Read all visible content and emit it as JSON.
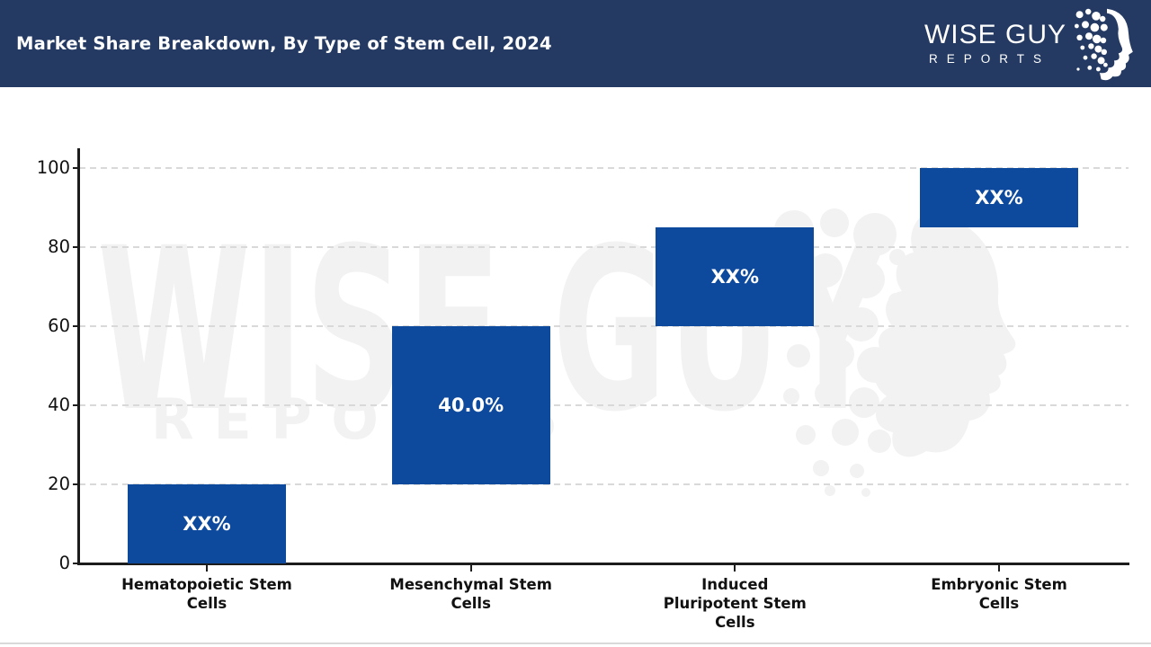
{
  "header": {
    "title": "Market Share Breakdown, By Type of Stem Cell, 2024",
    "logo": {
      "brand_line1": "WISE GUY",
      "brand_line2": "REPORTS"
    }
  },
  "watermark": {
    "brand_line1": "WISE GUY",
    "brand_line2": "R E P O R T S"
  },
  "chart_data": {
    "type": "bar",
    "subtype": "floating-waterfall",
    "title": "Market Share Breakdown, By Type of Stem Cell, 2024",
    "categories": [
      "Hematopoietic Stem Cells",
      "Mesenchymal Stem Cells",
      "Induced Pluripotent Stem Cells",
      "Embryonic Stem Cells"
    ],
    "xtick_display": [
      "Hematopoietic Stem\nCells",
      "Mesenchymal Stem\nCells",
      "Induced\nPluripotent Stem\nCells",
      "Embryonic Stem\nCells"
    ],
    "segments": [
      {
        "category": "Hematopoietic Stem Cells",
        "start": 0,
        "end": 20,
        "label": "XX%"
      },
      {
        "category": "Mesenchymal Stem Cells",
        "start": 20,
        "end": 60,
        "label": "40.0%"
      },
      {
        "category": "Induced Pluripotent Stem Cells",
        "start": 60,
        "end": 85,
        "label": "XX%"
      },
      {
        "category": "Embryonic Stem Cells",
        "start": 85,
        "end": 100,
        "label": "XX%"
      }
    ],
    "yticks": [
      0,
      20,
      40,
      60,
      80,
      100
    ],
    "ylim": [
      0,
      100
    ],
    "grid": "horizontal-dashed",
    "legend": "none",
    "colors": {
      "bar": "#0d4a9e",
      "grid": "#d9d9d9",
      "axis": "#1c1c1c",
      "bar_label": "#ffffff",
      "header_bg": "#243a63",
      "watermark": "#f2f2f2"
    }
  }
}
